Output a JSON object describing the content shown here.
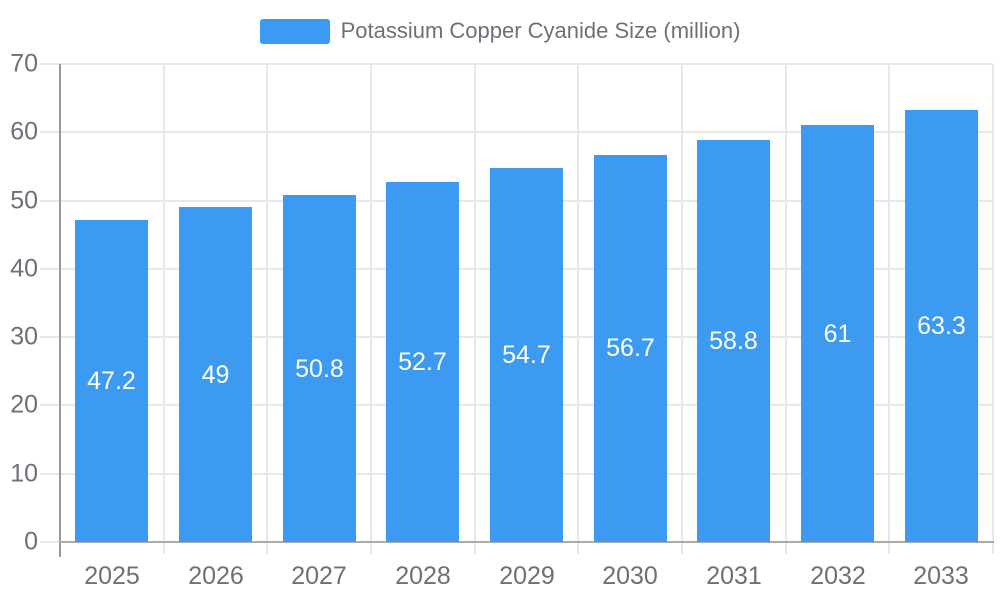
{
  "legend": {
    "label": "Potassium Copper Cyanide Size (million)"
  },
  "chart_data": {
    "type": "bar",
    "title": "Potassium Copper Cyanide Size (million)",
    "series_name": "Potassium Copper Cyanide Size (million)",
    "categories": [
      "2025",
      "2026",
      "2027",
      "2028",
      "2029",
      "2030",
      "2031",
      "2032",
      "2033"
    ],
    "values": [
      47.2,
      49,
      50.8,
      52.7,
      54.7,
      56.7,
      58.8,
      61,
      63.3
    ],
    "value_labels": [
      "47.2",
      "49",
      "50.8",
      "52.7",
      "54.7",
      "56.7",
      "58.8",
      "61",
      "63.3"
    ],
    "xlabel": "",
    "ylabel": "",
    "ylim": [
      0,
      70
    ],
    "yticks": [
      0,
      10,
      20,
      30,
      40,
      50,
      60,
      70
    ],
    "grid": true,
    "legend_position": "top-center",
    "value_label_position": "inside-middle",
    "colors": {
      "bar": "#3c9bf0",
      "value_label": "#ffffff",
      "axis_label": "#6e7079",
      "legend_text": "#6e7079",
      "axis_line": "#999999",
      "x_axis_line": "#ababab",
      "grid_line": "#e8e8e8",
      "background": "#ffffff"
    }
  }
}
